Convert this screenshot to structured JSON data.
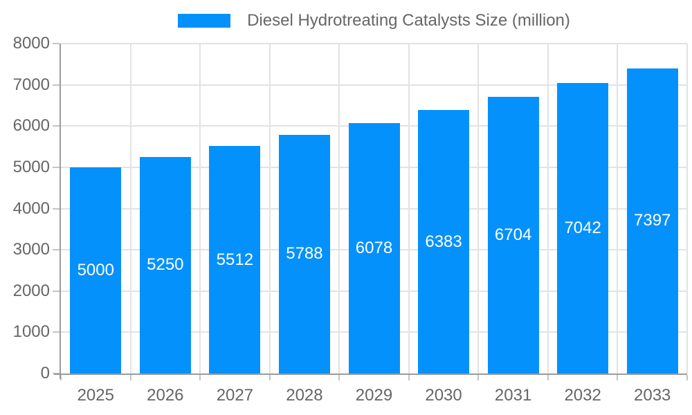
{
  "legend": {
    "label": "Diesel Hydrotreating Catalysts Size (million)"
  },
  "chart_data": {
    "type": "bar",
    "title": "Diesel Hydrotreating Catalysts Size (million)",
    "categories": [
      "2025",
      "2026",
      "2027",
      "2028",
      "2029",
      "2030",
      "2031",
      "2032",
      "2033"
    ],
    "values": [
      5000,
      5250,
      5512,
      5788,
      6078,
      6383,
      6704,
      7042,
      7397
    ],
    "xlabel": "",
    "ylabel": "",
    "ylim": [
      0,
      8000
    ],
    "yticks": [
      0,
      1000,
      2000,
      3000,
      4000,
      5000,
      6000,
      7000,
      8000
    ],
    "grid": "both",
    "legend_position": "top-center",
    "bar_label_position": "center",
    "colors": {
      "bar": "#0591fb",
      "bar_label": "#ffffff",
      "axis_text": "#666666",
      "grid_line": "#e2e2e2",
      "axis_line": "#9a9a9a",
      "tick": "#c4c4c4",
      "background": "#ffffff"
    }
  }
}
